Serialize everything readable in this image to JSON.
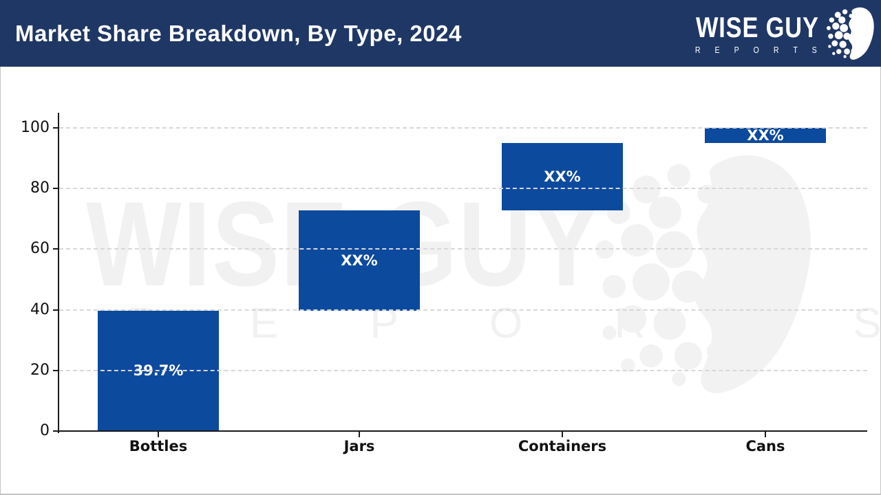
{
  "header": {
    "title": "Market Share Breakdown, By Type, 2024",
    "logo_line1": "WISE GUY",
    "logo_line2": "R E P O R T S"
  },
  "watermark": {
    "line1": "WISE GUY",
    "line2": "R E P O R T S"
  },
  "chart_data": {
    "type": "bar",
    "subtype": "waterfall",
    "title": "Market Share Breakdown, By Type, 2024",
    "categories": [
      "Bottles",
      "Jars",
      "Containers",
      "Cans"
    ],
    "segments": [
      {
        "category": "Bottles",
        "start": 0,
        "end": 39.7,
        "label": "39.7%"
      },
      {
        "category": "Jars",
        "start": 39.7,
        "end": 72.8,
        "label": "XX%"
      },
      {
        "category": "Containers",
        "start": 72.8,
        "end": 95.0,
        "label": "XX%"
      },
      {
        "category": "Cans",
        "start": 95.0,
        "end": 100.0,
        "label": "XX%"
      }
    ],
    "y_ticks": [
      0,
      20,
      40,
      60,
      80,
      100
    ],
    "ylim": [
      0,
      105
    ],
    "xlabel": "",
    "ylabel": "",
    "legend_position": "none",
    "grid": "horizontal-dashed",
    "bar_color": "#0c4a9e",
    "value_label_color": "#ffffff"
  },
  "colors": {
    "header_bg": "#1f3765",
    "bar": "#0c4a9e",
    "grid": "#d7d7d7",
    "axis": "#1a1a1a",
    "watermark": "#f1f1f1"
  }
}
